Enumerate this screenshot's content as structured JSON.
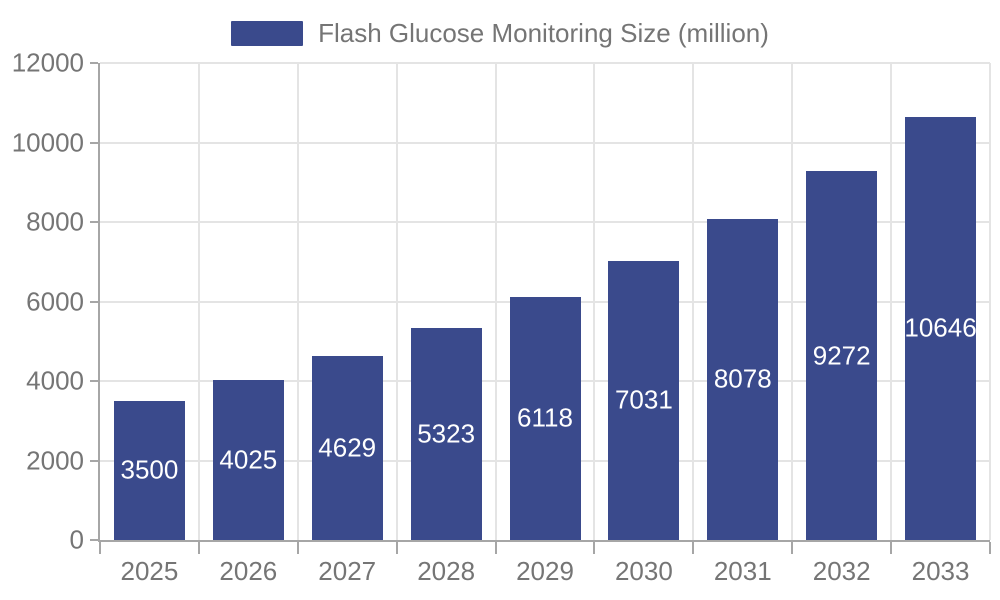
{
  "chart_data": {
    "type": "bar",
    "title": "Flash Glucose Monitoring Size (million)",
    "categories": [
      "2025",
      "2026",
      "2027",
      "2028",
      "2029",
      "2030",
      "2031",
      "2032",
      "2033"
    ],
    "values": [
      3500,
      4025,
      4629,
      5323,
      6118,
      7031,
      8078,
      9272,
      10646
    ],
    "xlabel": "",
    "ylabel": "",
    "ylim": [
      0,
      12000
    ],
    "ytick_step": 2000,
    "ytick_labels": [
      "0",
      "2000",
      "4000",
      "6000",
      "8000",
      "10000",
      "12000"
    ],
    "grid": true,
    "legend_position": "top-center",
    "value_label_position": "inside-center",
    "colors": {
      "bar": "#3A4A8C",
      "value_label": "#ffffff",
      "axis_text": "#757575",
      "axis_line": "#A6A6A6",
      "gridline": "#E4E4E4"
    }
  }
}
